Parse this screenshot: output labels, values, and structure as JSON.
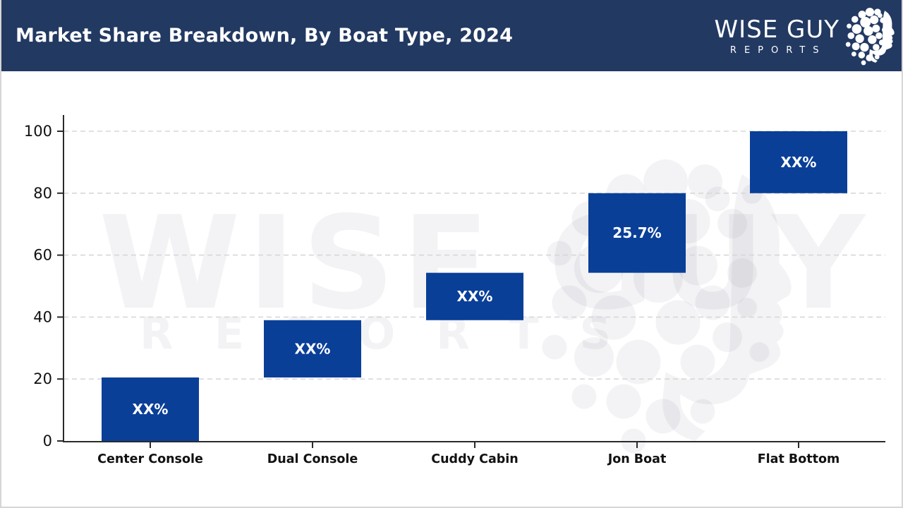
{
  "header": {
    "title": "Market Share Breakdown, By Boat Type, 2024",
    "bg_color": "#223962",
    "logo": {
      "line1": "WISE GUY",
      "line2": "REPORTS"
    }
  },
  "watermark": {
    "line1": "WISE GUY",
    "line2": "REPORTS"
  },
  "chart_data": {
    "type": "bar",
    "subtype": "waterfall",
    "title": "Market Share Breakdown, By Boat Type, 2024",
    "xlabel": "",
    "ylabel": "",
    "categories": [
      "Center Console",
      "Dual Console",
      "Cuddy Cabin",
      "Jon Boat",
      "Flat Bottom"
    ],
    "segments": [
      {
        "category": "Center Console",
        "start": 0,
        "end": 20.5,
        "label": "XX%"
      },
      {
        "category": "Dual Console",
        "start": 20.5,
        "end": 39,
        "label": "XX%"
      },
      {
        "category": "Cuddy Cabin",
        "start": 39,
        "end": 54.3,
        "label": "XX%"
      },
      {
        "category": "Jon Boat",
        "start": 54.3,
        "end": 80,
        "label": "25.7%"
      },
      {
        "category": "Flat Bottom",
        "start": 80,
        "end": 100,
        "label": "XX%"
      }
    ],
    "yticks": [
      0,
      20,
      40,
      60,
      80,
      100
    ],
    "ylim": [
      0,
      105
    ],
    "grid": "horizontal-dashed",
    "legend": null,
    "bar_color": "#0a3f98",
    "bar_label_color": "#ffffff",
    "axis_color": "#2a2a2a",
    "grid_color": "#d7d7d7",
    "tick_label_color": "#111111"
  }
}
